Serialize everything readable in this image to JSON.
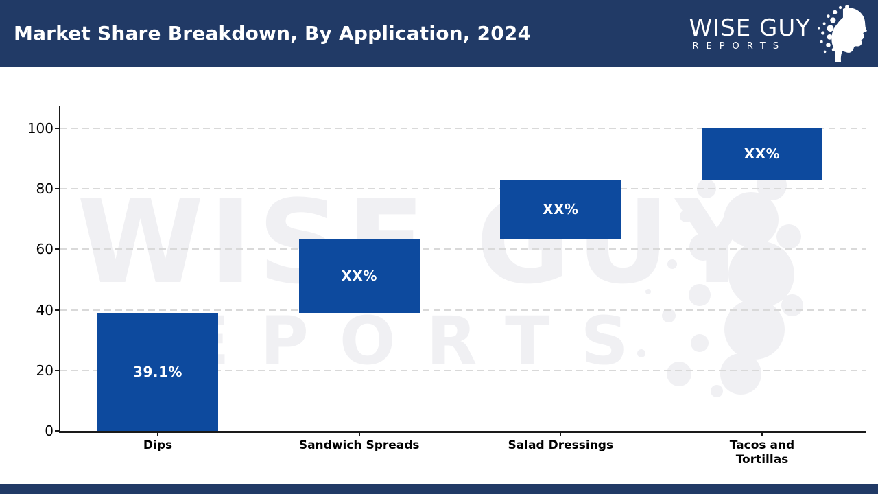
{
  "header": {
    "title": "Market Share Breakdown, By Application, 2024",
    "logo": {
      "wordmark": "WISE GUY",
      "sub": "REPORTS"
    }
  },
  "watermark": {
    "line1": "WISE GUY",
    "line2": "REPORTS"
  },
  "colors": {
    "header_bg": "#213a66",
    "footer_bg": "#213a66",
    "bar": "#0d4a9e",
    "bar_label": "#ffffff",
    "grid": "#d9d9d9",
    "axis": "#1a1a1a",
    "tick_label": "#000000",
    "watermark": "#f0f0f3",
    "title_text": "#ffffff"
  },
  "chart_data": {
    "type": "bar",
    "variant": "waterfall-floating-bars",
    "title": "Market Share Breakdown, By Application, 2024",
    "categories": [
      "Dips",
      "Sandwich Spreads",
      "Salad Dressings",
      "Tacos and\nTortillas"
    ],
    "segments": [
      {
        "category": "Dips",
        "start": 0,
        "end": 39.1,
        "label": "39.1%"
      },
      {
        "category": "Sandwich Spreads",
        "start": 39.1,
        "end": 63.5,
        "label": "XX%"
      },
      {
        "category": "Salad Dressings",
        "start": 63.5,
        "end": 83,
        "label": "XX%"
      },
      {
        "category": "Tacos and Tortillas",
        "start": 83,
        "end": 100,
        "label": "XX%"
      }
    ],
    "yticks": [
      0,
      20,
      40,
      60,
      80,
      100
    ],
    "ylim": [
      0,
      107
    ],
    "xlabel": "",
    "ylabel": "",
    "grid": {
      "horizontal": true,
      "style": "dashed",
      "ticks_with_grid": [
        20,
        40,
        60,
        80,
        100
      ]
    },
    "legend": null,
    "bar_color": "#0d4a9e",
    "value_label_color": "#ffffff"
  }
}
